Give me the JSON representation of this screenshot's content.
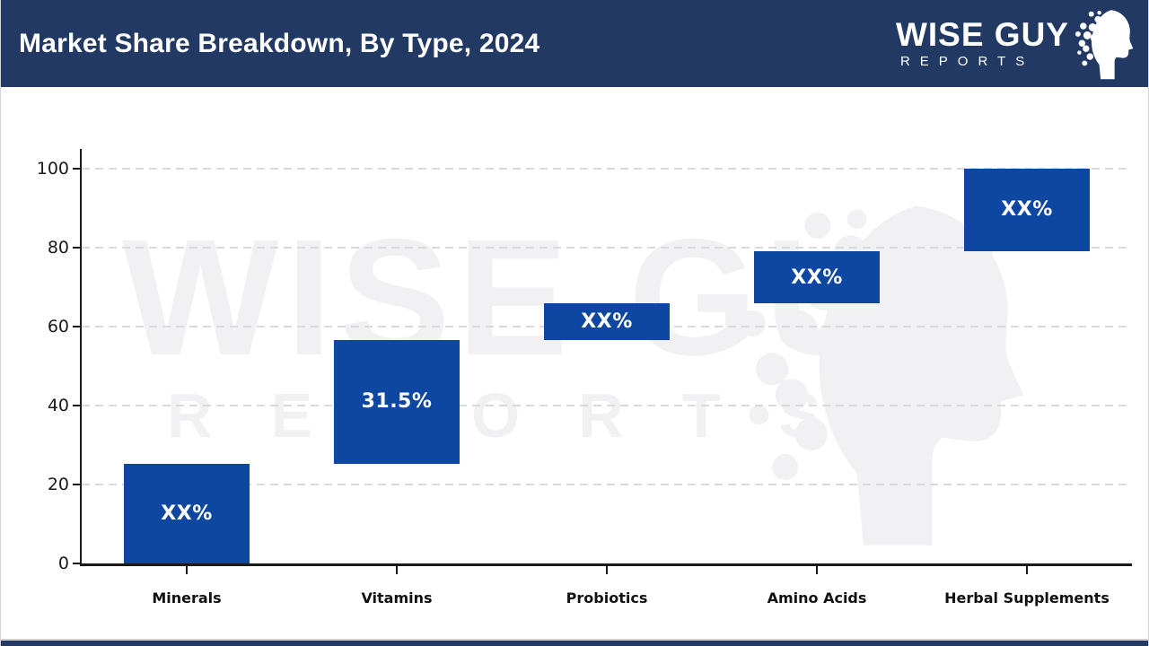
{
  "header": {
    "title": "Market Share Breakdown, By Type, 2024",
    "logo": {
      "name": "WISE GUY",
      "sub": "REPORTS"
    }
  },
  "watermark": {
    "line1": "WISE GUY",
    "line2": "REPORTS"
  },
  "chart_data": {
    "type": "bar",
    "subtype": "floating-waterfall",
    "title": "Market Share Breakdown, By Type, 2024",
    "categories": [
      "Minerals",
      "Vitamins",
      "Probiotics",
      "Amino Acids",
      "Herbal Supplements"
    ],
    "segments": [
      {
        "category": "Minerals",
        "start": 0,
        "end": 25.2,
        "value": 25.2,
        "label": "XX%"
      },
      {
        "category": "Vitamins",
        "start": 25.2,
        "end": 56.7,
        "value": 31.5,
        "label": "31.5%"
      },
      {
        "category": "Probiotics",
        "start": 56.7,
        "end": 65.9,
        "value": 9.2,
        "label": "XX%"
      },
      {
        "category": "Amino Acids",
        "start": 65.9,
        "end": 79.1,
        "value": 13.2,
        "label": "XX%"
      },
      {
        "category": "Herbal Supplements",
        "start": 79.1,
        "end": 100,
        "value": 20.9,
        "label": "XX%"
      }
    ],
    "ylim": [
      0,
      100
    ],
    "yticks": [
      0,
      20,
      40,
      60,
      80,
      100
    ],
    "xlabel": "",
    "ylabel": "",
    "grid": {
      "axis": "y",
      "style": "dashed",
      "color": "#d9d9d9"
    },
    "legend": {
      "visible": false
    },
    "bar_color": "#0d47a1",
    "bar_label_color": "#ffffff"
  },
  "colors": {
    "header_bg": "#213963",
    "footer_bg": "#213963",
    "bar": "#0d47a1",
    "axis": "#1a1a1a",
    "watermark": "#f1f1f4"
  }
}
